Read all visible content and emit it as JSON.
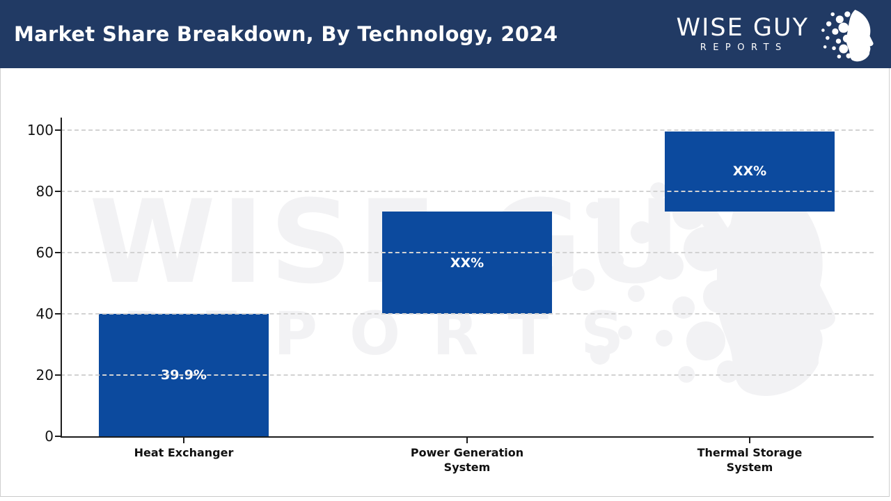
{
  "header": {
    "title": "Market Share Breakdown, By Technology, 2024",
    "logo": {
      "line1": "WISE GUY",
      "line2": "REPORTS"
    }
  },
  "watermark": {
    "line1": "WISE GUY",
    "line2": "REPORTS"
  },
  "chart_data": {
    "type": "bar",
    "variant": "floating-segment-waterfall",
    "title": "Market Share Breakdown, By Technology, 2024",
    "categories": [
      [
        "Heat Exchanger"
      ],
      [
        "Power Generation",
        "System"
      ],
      [
        "Thermal Storage",
        "System"
      ]
    ],
    "bars": [
      {
        "start": 0,
        "end": 39.9,
        "label": "39.9%"
      },
      {
        "start": 39.9,
        "end": 73.5,
        "label": "XX%"
      },
      {
        "start": 73.5,
        "end": 99.5,
        "label": "XX%"
      }
    ],
    "yticks": [
      0,
      20,
      40,
      60,
      80,
      100
    ],
    "ylim": [
      0,
      104
    ],
    "grid": {
      "axis": "y",
      "style": "dashed",
      "color": "#d2d2d2",
      "on_top": true
    },
    "legend": "none",
    "colors": {
      "bar": "#0c4a9e",
      "bar_label": "#ffffff",
      "header_bg": "#213a64",
      "axis": "#1c1c1c",
      "watermark": "#f2f2f4"
    }
  }
}
